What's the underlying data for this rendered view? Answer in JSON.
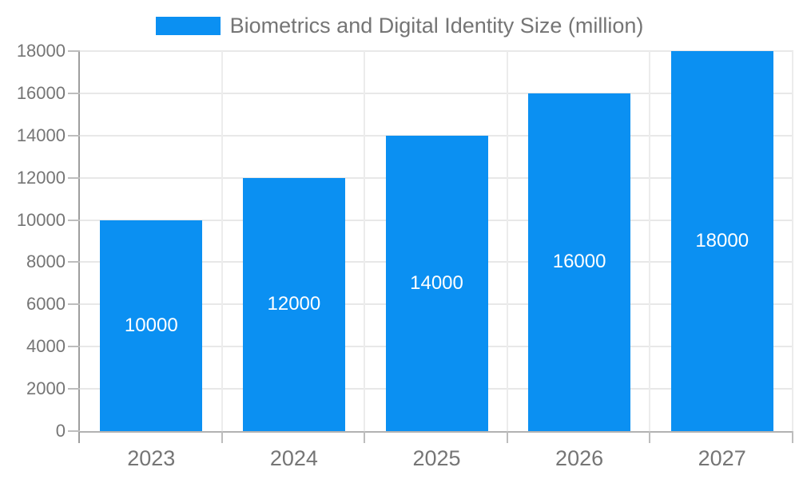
{
  "chart_data": {
    "type": "bar",
    "title": "Biometrics and Digital Identity Size (million)",
    "categories": [
      "2023",
      "2024",
      "2025",
      "2026",
      "2027"
    ],
    "series": [
      {
        "name": "Biometrics and Digital Identity Size (million)",
        "values": [
          10000,
          12000,
          14000,
          16000,
          18000
        ]
      }
    ],
    "xlabel": "",
    "ylabel": "",
    "ylim": [
      0,
      18000
    ],
    "yticks": [
      0,
      2000,
      4000,
      6000,
      8000,
      10000,
      12000,
      14000,
      16000,
      18000
    ],
    "grid": true,
    "legend_position": "top-center",
    "bar_value_labels_inside": true,
    "colors": {
      "bar": "#0b90f2",
      "bar_label_text": "#ffffff",
      "axis_text": "#757575",
      "gridline_h": "#e8e8e8",
      "gridline_v": "#ececec",
      "axis_line_left": "#9e9e9e",
      "axis_line_bottom": "#b2b2b2",
      "tick_mark": "#bdbdbd",
      "background": "#ffffff"
    }
  }
}
